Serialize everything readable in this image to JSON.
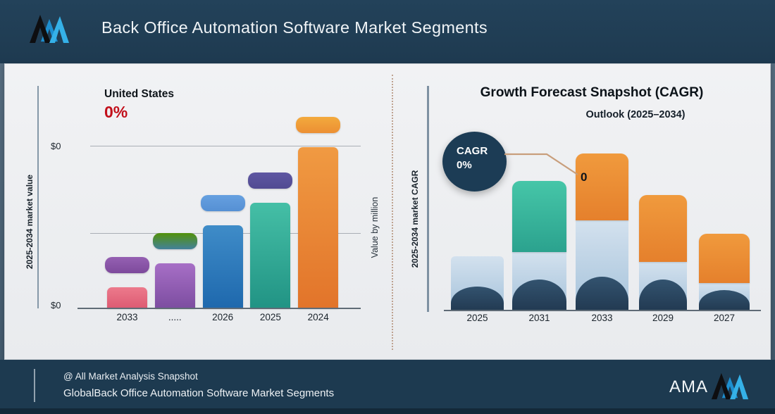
{
  "header": {
    "title": "Back Office Automation Software Market Segments",
    "logo": "ama-mountain-logo"
  },
  "middle": {
    "value_axis_note": "Value by million"
  },
  "footer": {
    "line1": "@ All Market Analysis Snapshot",
    "line2": "GlobalBack Office Automation Software Market Segments",
    "brand": "AMA"
  },
  "colors": {
    "header_bg": "#1e3a50",
    "card_bg": "#edeff1",
    "accent_red": "#c20f1a",
    "badge_navy": "#1c3c55",
    "connector_tan": "#c89e7b",
    "light_blue_segment": "#b9cfe2",
    "dark_blue_segment": "#2b4a66",
    "teal_segment": "#39bb9f",
    "orange_segment": "#ec8f33"
  },
  "chart_data": [
    {
      "type": "bar",
      "title": "United States",
      "annotation": "0%",
      "ylabel": "2025-2034 market value",
      "yticks": [
        "$0",
        "$0"
      ],
      "categories": [
        "2033",
        ".....",
        "2026",
        "2025",
        "2024"
      ],
      "values": [
        30,
        64,
        118,
        150,
        229
      ],
      "value_note": "relative bar heights; axis shows $0 at both gridlines (placeholder chart)",
      "grid": true,
      "bar_styles": [
        {
          "top": "#ec7a8c",
          "bottom": "#dd5a72",
          "cap_top": "#9560b2",
          "cap_bottom": "#7d4a9c"
        },
        {
          "top": "#a76fc6",
          "bottom": "#7c4da0",
          "cap_top": "#529109",
          "cap_bottom": "#43819a"
        },
        {
          "top": "#3f8cc8",
          "bottom": "#1e68ad",
          "cap_top": "#66a0e0",
          "cap_bottom": "#5590d4"
        },
        {
          "top": "#45bfa6",
          "bottom": "#219384",
          "cap_top": "#5e57a2",
          "cap_bottom": "#514a92"
        },
        {
          "top": "#f09a42",
          "bottom": "#e2742a",
          "cap_top": "#f3aa3d",
          "cap_bottom": "#ec8f33"
        }
      ]
    },
    {
      "type": "stacked-bar",
      "title": "Growth Forecast Snapshot (CAGR)",
      "subtitle": "Outlook (2025–2034)",
      "ylabel": "2025-2034 market CAGR",
      "badge": {
        "line1": "CAGR",
        "line2": "0%"
      },
      "annotation": "0",
      "categories": [
        "2025",
        "2031",
        "2033",
        "2029",
        "2027"
      ],
      "series": [
        {
          "name": "base-dark-blue",
          "values": [
            34,
            44,
            48,
            44,
            29
          ]
        },
        {
          "name": "mid-light-blue",
          "values": [
            43,
            39,
            80,
            25,
            10
          ]
        },
        {
          "name": "top-accent",
          "values": [
            0,
            101,
            95,
            95,
            70
          ]
        }
      ],
      "top_accent_colors": [
        "none",
        "teal",
        "orange",
        "orange",
        "orange"
      ],
      "value_note": "relative segment heights; no numeric scale shown",
      "grid": false
    }
  ]
}
